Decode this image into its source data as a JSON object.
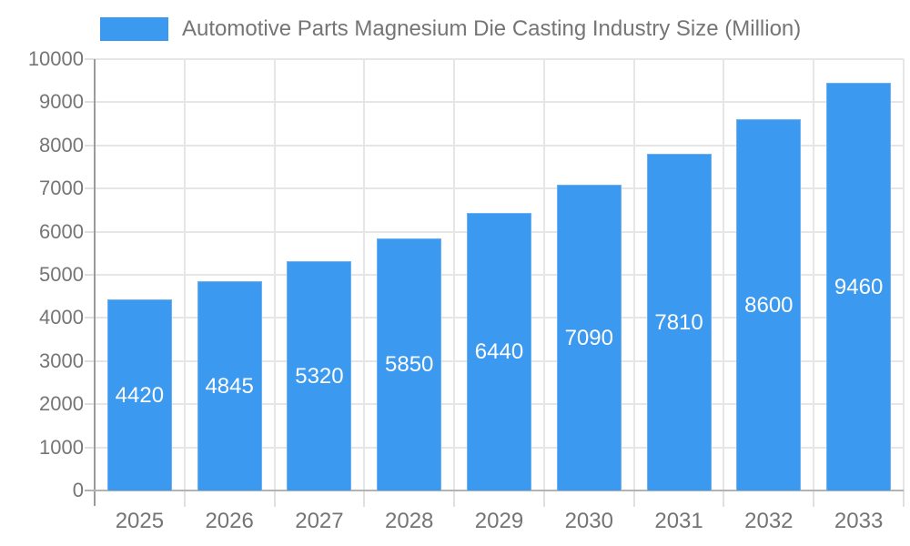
{
  "chart_data": {
    "type": "bar",
    "title": "Automotive Parts Magnesium Die Casting Industry Size (Million)",
    "categories": [
      "2025",
      "2026",
      "2027",
      "2028",
      "2029",
      "2030",
      "2031",
      "2032",
      "2033"
    ],
    "values": [
      4420,
      4845,
      5320,
      5850,
      6440,
      7090,
      7810,
      8600,
      9460
    ],
    "xlabel": "",
    "ylabel": "",
    "ylim": [
      0,
      10000
    ],
    "ytick_step": 1000,
    "ytick_labels": [
      "0",
      "1000",
      "2000",
      "3000",
      "4000",
      "5000",
      "6000",
      "7000",
      "8000",
      "9000",
      "10000"
    ],
    "grid": "both",
    "legend_position": "top-left",
    "value_label_position": "inside-center",
    "colors": {
      "bar": "#3c99f0",
      "bar_edge": "#6db1f3",
      "value_text": "#ffffff",
      "axis_text": "#757575",
      "title_text": "#757575",
      "gridline": "#e6e6e6",
      "y_axis_line": "#9b9b9b",
      "x_axis_line": "#b3b3b3",
      "tick": "#e0e0e0",
      "background": "#ffffff"
    }
  }
}
